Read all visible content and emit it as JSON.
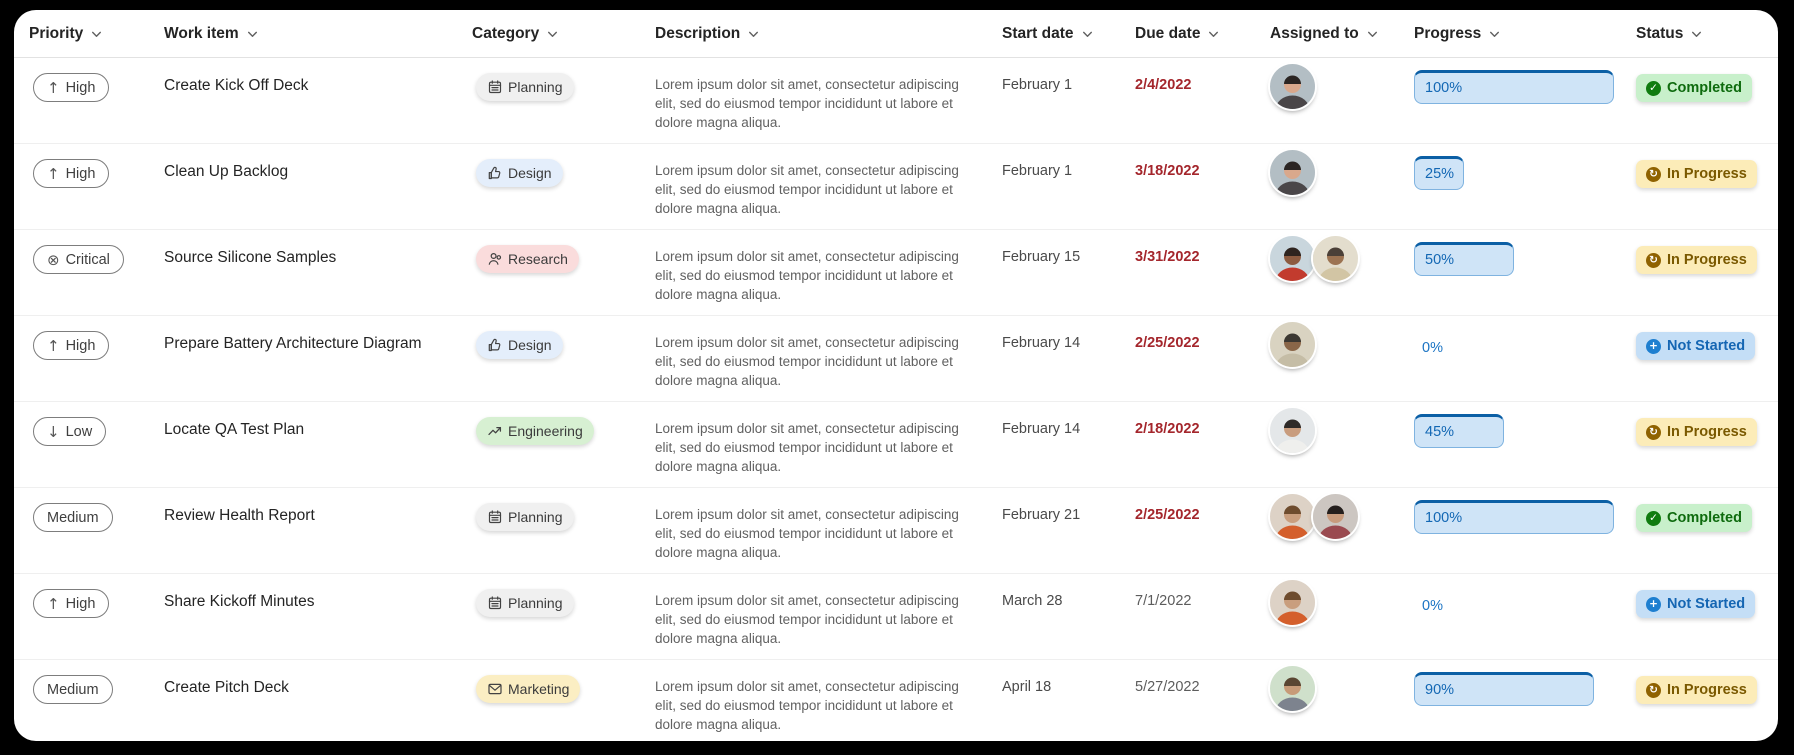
{
  "colors": {
    "accent_blue": "#0f6cbd",
    "overdue_red": "#a4262c",
    "progress_fill": "#cfe4f7",
    "progress_border": "#0b5fa5",
    "completed_bg": "#c8f0cb",
    "completed_fg": "#107c10",
    "in_progress_bg": "#fcecb8",
    "in_progress_fg": "#8f6200",
    "not_started_bg": "#c4def6",
    "not_started_fg": "#1e7fd0"
  },
  "people": {
    "p1": {
      "bg": "#b3bec4",
      "skin": "#d9a88c",
      "hair": "#2b2523",
      "shirt": "#4a4648"
    },
    "p2": {
      "bg": "#c9d6dd",
      "skin": "#8d5b40",
      "hair": "#2f241f",
      "shirt": "#c23b2e"
    },
    "p3": {
      "bg": "#e3ddcd",
      "skin": "#9c7352",
      "hair": "#4b4038",
      "shirt": "#d2c5a4"
    },
    "p4": {
      "bg": "#d9d3c1",
      "skin": "#8a6648",
      "hair": "#3c3832",
      "shirt": "#c5bda6"
    },
    "p5": {
      "bg": "#e4e7e9",
      "skin": "#c89c7e",
      "hair": "#2e2a28",
      "shirt": "#efefed"
    },
    "p6": {
      "bg": "#ddd2c6",
      "skin": "#c99e7e",
      "hair": "#6e4c2e",
      "shirt": "#d45f2c"
    },
    "p6b": {
      "bg": "#ccc6c1",
      "skin": "#c79b7d",
      "hair": "#241f1d",
      "shirt": "#9a4a50"
    },
    "p7": {
      "bg": "#cfe0cb",
      "skin": "#c79b78",
      "hair": "#5a4632",
      "shirt": "#7d838e"
    }
  },
  "table": {
    "columns": [
      {
        "label": "Priority"
      },
      {
        "label": "Work item"
      },
      {
        "label": "Category"
      },
      {
        "label": "Description"
      },
      {
        "label": "Start date"
      },
      {
        "label": "Due date"
      },
      {
        "label": "Assigned to"
      },
      {
        "label": "Progress"
      },
      {
        "label": "Status"
      }
    ],
    "rows": [
      {
        "priority": {
          "label": "High",
          "icon": "arrow-up-icon"
        },
        "work_item": "Create Kick Off Deck",
        "category": {
          "label": "Planning",
          "icon": "calendar-icon",
          "bg": "#f0f0f0"
        },
        "description": "Lorem ipsum dolor sit amet, consectetur adipiscing elit, sed do eiusmod tempor incididunt ut labore et dolore magna aliqua.",
        "start_date": "February 1",
        "due_date": {
          "label": "2/4/2022",
          "overdue": true
        },
        "assignees": [
          "p1"
        ],
        "progress": {
          "label": "100%",
          "value": 100
        },
        "status": {
          "label": "Completed",
          "variant": "completed",
          "icon": "checkmark-circle-icon"
        }
      },
      {
        "priority": {
          "label": "High",
          "icon": "arrow-up-icon"
        },
        "work_item": "Clean Up Backlog",
        "category": {
          "label": "Design",
          "icon": "thumbs-up-icon",
          "bg": "#e4eefb"
        },
        "description": "Lorem ipsum dolor sit amet, consectetur adipiscing elit, sed do eiusmod tempor incididunt ut labore et dolore magna aliqua.",
        "start_date": "February 1",
        "due_date": {
          "label": "3/18/2022",
          "overdue": true
        },
        "assignees": [
          "p1"
        ],
        "progress": {
          "label": "25%",
          "value": 25
        },
        "status": {
          "label": "In Progress",
          "variant": "in-progress",
          "icon": "sync-circle-icon"
        }
      },
      {
        "priority": {
          "label": "Critical",
          "icon": "dismiss-circle-icon"
        },
        "work_item": "Source Silicone Samples",
        "category": {
          "label": "Research",
          "icon": "person-icon",
          "bg": "#fadcdc"
        },
        "description": "Lorem ipsum dolor sit amet, consectetur adipiscing elit, sed do eiusmod tempor incididunt ut labore et dolore magna aliqua.",
        "start_date": "February 15",
        "due_date": {
          "label": "3/31/2022",
          "overdue": true
        },
        "assignees": [
          "p2",
          "p3"
        ],
        "progress": {
          "label": "50%",
          "value": 50
        },
        "status": {
          "label": "In Progress",
          "variant": "in-progress",
          "icon": "sync-circle-icon"
        }
      },
      {
        "priority": {
          "label": "High",
          "icon": "arrow-up-icon"
        },
        "work_item": "Prepare Battery Architecture Diagram",
        "category": {
          "label": "Design",
          "icon": "thumbs-up-icon",
          "bg": "#e4eefb"
        },
        "description": "Lorem ipsum dolor sit amet, consectetur adipiscing elit, sed do eiusmod tempor incididunt ut labore et dolore magna aliqua.",
        "start_date": "February 14",
        "due_date": {
          "label": "2/25/2022",
          "overdue": true
        },
        "assignees": [
          "p4"
        ],
        "progress": {
          "label": "0%",
          "value": 0
        },
        "status": {
          "label": "Not Started",
          "variant": "not-started",
          "icon": "add-circle-icon"
        }
      },
      {
        "priority": {
          "label": "Low",
          "icon": "arrow-down-icon"
        },
        "work_item": "Locate QA Test Plan",
        "category": {
          "label": "Engineering",
          "icon": "trending-up-icon",
          "bg": "#d7f0d2"
        },
        "description": "Lorem ipsum dolor sit amet, consectetur adipiscing elit, sed do eiusmod tempor incididunt ut labore et dolore magna aliqua.",
        "start_date": "February 14",
        "due_date": {
          "label": "2/18/2022",
          "overdue": true
        },
        "assignees": [
          "p5"
        ],
        "progress": {
          "label": "45%",
          "value": 45
        },
        "status": {
          "label": "In Progress",
          "variant": "in-progress",
          "icon": "sync-circle-icon"
        }
      },
      {
        "priority": {
          "label": "Medium",
          "icon": ""
        },
        "work_item": "Review Health Report",
        "category": {
          "label": "Planning",
          "icon": "calendar-icon",
          "bg": "#f0f0f0"
        },
        "description": "Lorem ipsum dolor sit amet, consectetur adipiscing elit, sed do eiusmod tempor incididunt ut labore et dolore magna aliqua.",
        "start_date": "February 21",
        "due_date": {
          "label": "2/25/2022",
          "overdue": true
        },
        "assignees": [
          "p6",
          "p6b"
        ],
        "progress": {
          "label": "100%",
          "value": 100
        },
        "status": {
          "label": "Completed",
          "variant": "completed",
          "icon": "checkmark-circle-icon"
        }
      },
      {
        "priority": {
          "label": "High",
          "icon": "arrow-up-icon"
        },
        "work_item": "Share Kickoff Minutes",
        "category": {
          "label": "Planning",
          "icon": "calendar-icon",
          "bg": "#f0f0f0"
        },
        "description": "Lorem ipsum dolor sit amet, consectetur adipiscing elit, sed do eiusmod tempor incididunt ut labore et dolore magna aliqua.",
        "start_date": "March 28",
        "due_date": {
          "label": "7/1/2022",
          "overdue": false
        },
        "assignees": [
          "p6"
        ],
        "progress": {
          "label": "0%",
          "value": 0
        },
        "status": {
          "label": "Not Started",
          "variant": "not-started",
          "icon": "add-circle-icon"
        }
      },
      {
        "priority": {
          "label": "Medium",
          "icon": ""
        },
        "work_item": "Create Pitch Deck",
        "category": {
          "label": "Marketing",
          "icon": "mail-icon",
          "bg": "#fbeec3"
        },
        "description": "Lorem ipsum dolor sit amet, consectetur adipiscing elit, sed do eiusmod tempor incididunt ut labore et dolore magna aliqua.",
        "start_date": "April 18",
        "due_date": {
          "label": "5/27/2022",
          "overdue": false
        },
        "assignees": [
          "p7"
        ],
        "progress": {
          "label": "90%",
          "value": 90
        },
        "status": {
          "label": "In Progress",
          "variant": "in-progress",
          "icon": "sync-circle-icon"
        }
      }
    ]
  }
}
